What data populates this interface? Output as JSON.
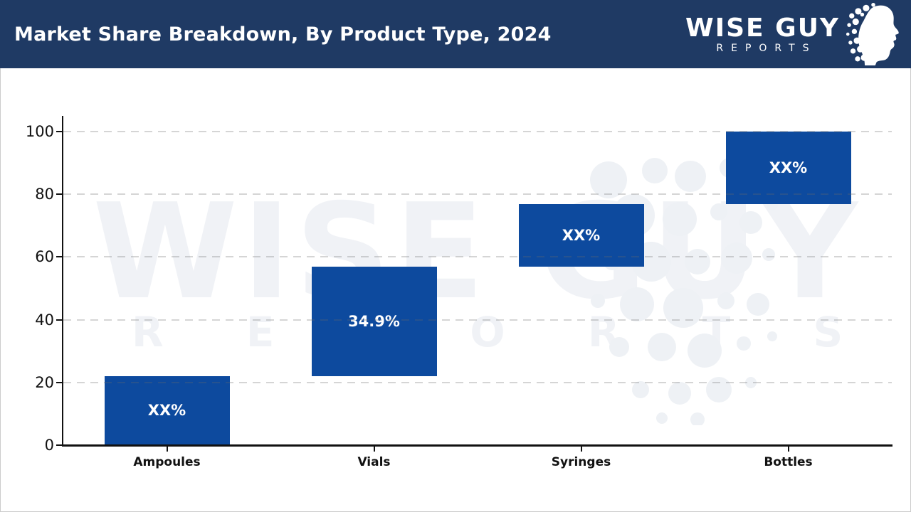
{
  "header": {
    "title": "Market Share Breakdown, By Product Type, 2024",
    "background_color": "#1f3a64"
  },
  "logo": {
    "line1": "WISE GUY",
    "line2": "REPORTS"
  },
  "watermark": {
    "line1": "WISE GUY",
    "line2": "R E P O R T S"
  },
  "chart_data": {
    "type": "bar",
    "subtype": "floating-waterfall",
    "title": "Market Share Breakdown, By Product Type, 2024",
    "categories": [
      "Ampoules",
      "Vials",
      "Syringes",
      "Bottles"
    ],
    "bars": [
      {
        "category": "Ampoules",
        "start": 0,
        "end": 22,
        "label": "XX%"
      },
      {
        "category": "Vials",
        "start": 22,
        "end": 56.9,
        "label": "34.9%"
      },
      {
        "category": "Syringes",
        "start": 56.9,
        "end": 76.9,
        "label": "XX%"
      },
      {
        "category": "Bottles",
        "start": 76.9,
        "end": 100,
        "label": "XX%"
      }
    ],
    "xlabel": "",
    "ylabel": "",
    "ylim": [
      0,
      105
    ],
    "yticks": [
      0,
      20,
      40,
      60,
      80,
      100
    ],
    "grid": "horizontal-dashed",
    "legend": "none",
    "bar_color": "#0d4a9e",
    "bar_label_color": "#ffffff",
    "axis_color": "#111111",
    "gridline_color": "#d8d8d8"
  }
}
